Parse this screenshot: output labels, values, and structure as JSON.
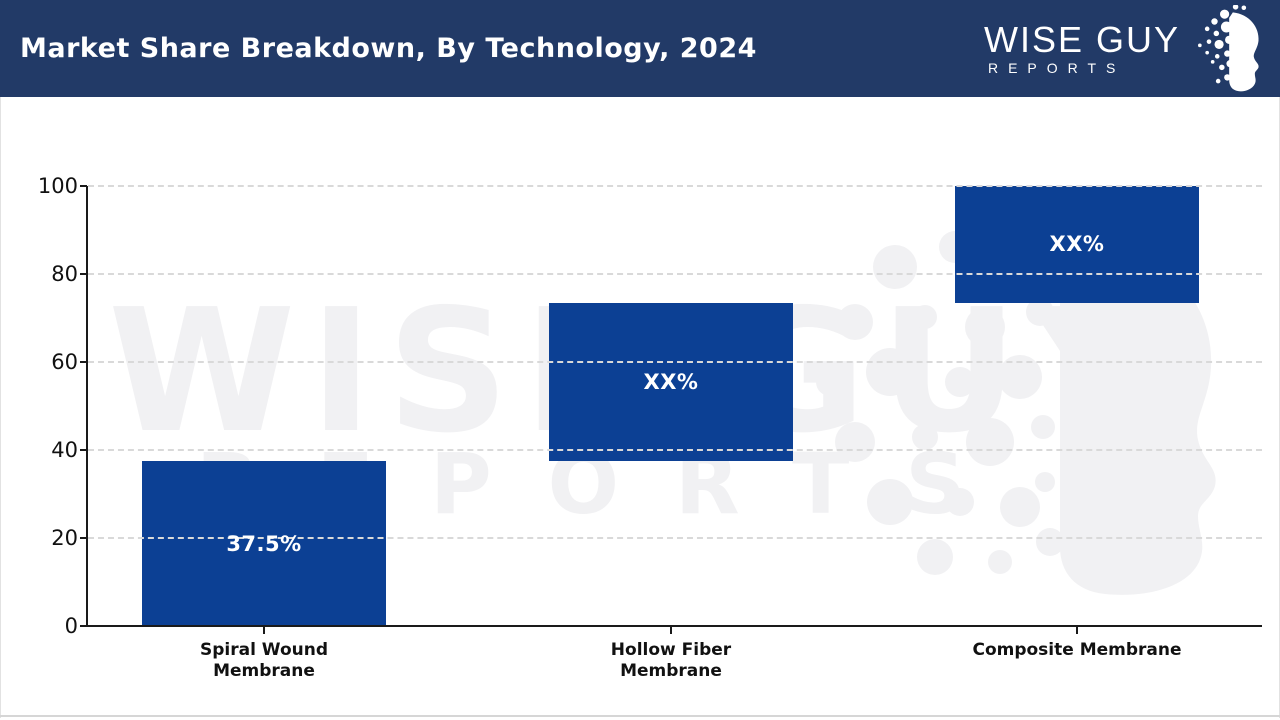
{
  "header": {
    "title": "Market Share Breakdown, By Technology, 2024",
    "bg_color": "#223A67",
    "logo": {
      "line1": "WISE GUY",
      "line2": "REPORTS",
      "head_icon": "dotted-face-profile"
    }
  },
  "watermark": {
    "line1": "WISE GUY",
    "line2": "REPORTS",
    "head_icon": "dotted-face-profile",
    "color": "#F1F1F3"
  },
  "chart_data": {
    "type": "bar",
    "subtype": "floating-range-waterfall",
    "title": "Market Share Breakdown, By Technology, 2024",
    "categories": [
      [
        "Spiral Wound",
        "Membrane"
      ],
      [
        "Hollow Fiber",
        "Membrane"
      ],
      [
        "Composite Membrane"
      ]
    ],
    "series": [
      {
        "name": "Market Share (%)",
        "segments": [
          [
            0,
            37.5
          ],
          [
            37.5,
            73.5
          ],
          [
            73.5,
            100
          ]
        ]
      }
    ],
    "bar_labels": [
      "37.5%",
      "XX%",
      "XX%"
    ],
    "yticks": [
      0,
      20,
      40,
      60,
      80,
      100
    ],
    "ylim": [
      0,
      100
    ],
    "xlabel": "",
    "ylabel": "",
    "grid": "horizontal-dashed",
    "grid_on_top": true,
    "legend": false,
    "bar_color": "#0C4094",
    "grid_color": "#D9D9D9",
    "axis_color": "#1A1A1A",
    "value_label_color": "#FFFFFF"
  }
}
